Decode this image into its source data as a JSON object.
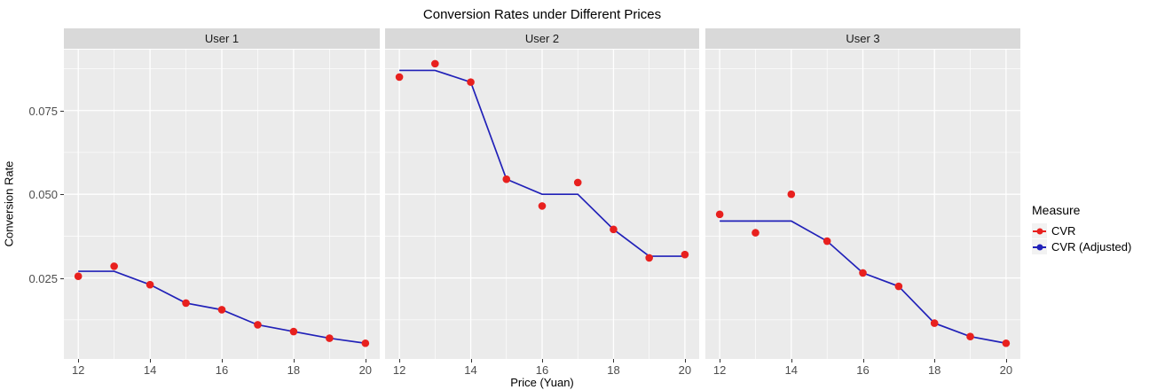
{
  "title": "Conversion Rates under Different Prices",
  "chart_data": {
    "type": "line",
    "title": "Conversion Rates under Different Prices",
    "xlabel": "Price (Yuan)",
    "ylabel": "Conversion Rate",
    "x": [
      12,
      13,
      14,
      15,
      16,
      17,
      18,
      19,
      20
    ],
    "xlim": [
      11.6,
      20.4
    ],
    "ylim": [
      0.0008,
      0.0932
    ],
    "x_major_ticks": [
      12,
      14,
      16,
      18,
      20
    ],
    "x_major_tick_labels": [
      "12",
      "14",
      "16",
      "18",
      "20"
    ],
    "x_minor_gridlines": [
      13,
      15,
      17,
      19
    ],
    "y_major_ticks": [
      0.025,
      0.05,
      0.075
    ],
    "y_tick_labels": [
      "0.025",
      "0.050",
      "0.075"
    ],
    "y_minor_gridlines": [
      0.0125,
      0.0375,
      0.0625,
      0.0875
    ],
    "grid": true,
    "legend_position": "right",
    "facets": [
      {
        "label": "User 1",
        "series": [
          {
            "name": "CVR",
            "type": "points",
            "values": [
              0.0255,
              0.0285,
              0.023,
              0.0175,
              0.0155,
              0.011,
              0.009,
              0.007,
              0.0055
            ]
          },
          {
            "name": "CVR (Adjusted)",
            "type": "line",
            "values": [
              0.027,
              0.027,
              0.023,
              0.0175,
              0.0155,
              0.011,
              0.009,
              0.007,
              0.0055
            ]
          }
        ]
      },
      {
        "label": "User 2",
        "series": [
          {
            "name": "CVR",
            "type": "points",
            "values": [
              0.085,
              0.089,
              0.0835,
              0.0545,
              0.0465,
              0.0535,
              0.0395,
              0.031,
              0.032
            ]
          },
          {
            "name": "CVR (Adjusted)",
            "type": "line",
            "values": [
              0.087,
              0.087,
              0.0835,
              0.0545,
              0.05,
              0.05,
              0.0395,
              0.0315,
              0.0315
            ]
          }
        ]
      },
      {
        "label": "User 3",
        "series": [
          {
            "name": "CVR",
            "type": "points",
            "values": [
              0.044,
              0.0385,
              0.05,
              0.036,
              0.0265,
              0.0225,
              0.0115,
              0.0075,
              0.0055
            ]
          },
          {
            "name": "CVR (Adjusted)",
            "type": "line",
            "values": [
              0.042,
              0.042,
              0.042,
              0.036,
              0.0265,
              0.0225,
              0.0115,
              0.0075,
              0.0055
            ]
          }
        ]
      }
    ]
  },
  "legend": {
    "title": "Measure",
    "items": [
      {
        "label": "CVR",
        "color": "#e8201e"
      },
      {
        "label": "CVR (Adjusted)",
        "color": "#2121b8"
      }
    ]
  },
  "colors": {
    "point_red": "#e8201e",
    "line_blue": "#2121b8",
    "panel_bg": "#ebebeb",
    "strip_bg": "#d9d9d9",
    "gridline": "#ffffff",
    "tick_text": "#4d4d4d",
    "axis_text": "#000000",
    "legend_key_bg": "#f2f2f2"
  }
}
